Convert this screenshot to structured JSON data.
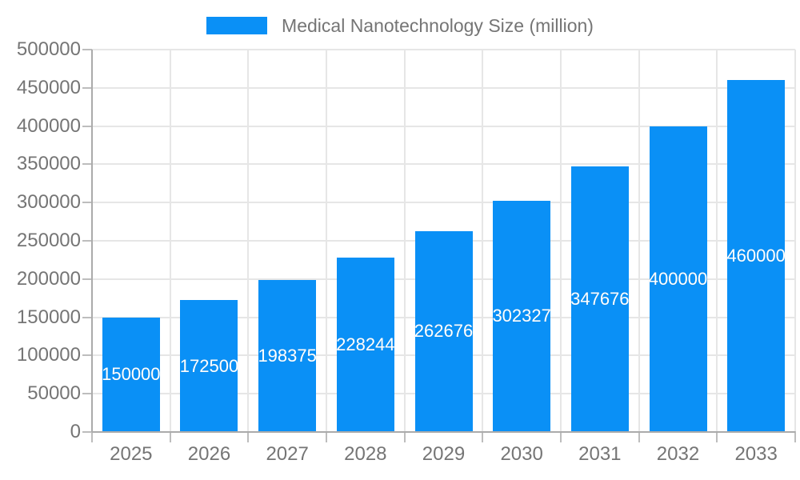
{
  "legend": {
    "label": "Medical Nanotechnology Size (million)"
  },
  "colors": {
    "bar": "#0a90f6",
    "axis_text": "#757575",
    "grid": "#e6e6e6",
    "axis_line": "#ababab",
    "tick": "#bdbdbd",
    "bar_label_text": "#ffffff",
    "background": "#ffffff"
  },
  "chart_data": {
    "type": "bar",
    "title": "Medical Nanotechnology Size (million)",
    "categories": [
      "2025",
      "2026",
      "2027",
      "2028",
      "2029",
      "2030",
      "2031",
      "2032",
      "2033"
    ],
    "values": [
      150000,
      172500,
      198375,
      228244,
      262676,
      302327,
      347676,
      400000,
      460000
    ],
    "series": [
      {
        "name": "Medical Nanotechnology Size (million)",
        "values": [
          150000,
          172500,
          198375,
          228244,
          262676,
          302327,
          347676,
          400000,
          460000
        ]
      }
    ],
    "bar_value_labels": [
      "150000",
      "172500",
      "198375",
      "228244",
      "262676",
      "302327",
      "347676",
      "400000",
      "460000"
    ],
    "xlabel": "",
    "ylabel": "",
    "ylim": [
      0,
      500000
    ],
    "ytick_step": 50000,
    "ytick_labels": [
      "0",
      "50000",
      "100000",
      "150000",
      "200000",
      "250000",
      "300000",
      "350000",
      "400000",
      "450000",
      "500000"
    ],
    "grid": true,
    "legend_position": "top"
  }
}
